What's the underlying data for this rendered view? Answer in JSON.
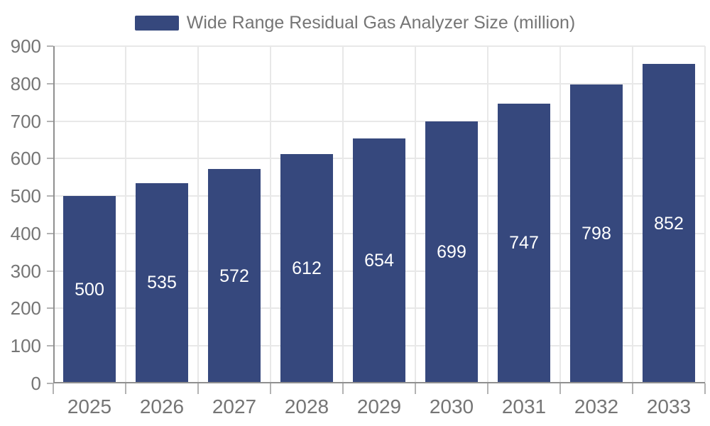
{
  "chart_data": {
    "type": "bar",
    "title": "Wide Range Residual Gas Analyzer Size (million)",
    "legend": {
      "label": "Wide Range Residual Gas Analyzer Size (million)",
      "position": "top"
    },
    "categories": [
      "2025",
      "2026",
      "2027",
      "2028",
      "2029",
      "2030",
      "2031",
      "2032",
      "2033"
    ],
    "values": [
      500,
      535,
      572,
      612,
      654,
      699,
      747,
      798,
      852
    ],
    "xlabel": "",
    "ylabel": "",
    "ylim": [
      0,
      900
    ],
    "ytick_step": 100,
    "ytick_labels": [
      "0",
      "100",
      "200",
      "300",
      "400",
      "500",
      "600",
      "700",
      "800",
      "900"
    ],
    "grid": true,
    "colors": {
      "bar": "#36487d",
      "value_label": "#ffffff",
      "grid_line": "#e8e8e8",
      "axis_line": "#8f8f8f",
      "tick_mark": "#b3b3b3",
      "text": "#757575"
    }
  }
}
